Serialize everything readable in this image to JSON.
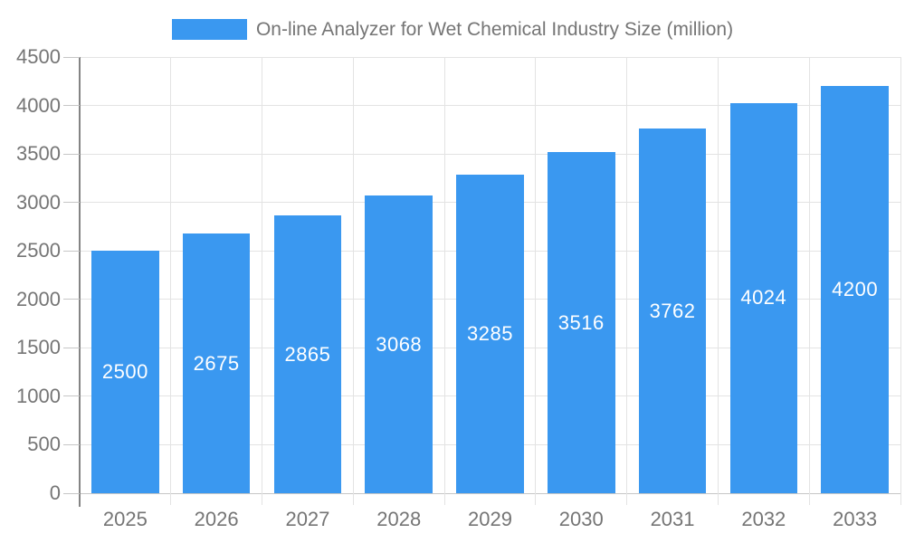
{
  "chart_data": {
    "type": "bar",
    "title": "On-line Analyzer for Wet Chemical Industry Size (million)",
    "legend_position": "top",
    "categories": [
      "2025",
      "2026",
      "2027",
      "2028",
      "2029",
      "2030",
      "2031",
      "2032",
      "2033"
    ],
    "series": [
      {
        "name": "On-line Analyzer for Wet Chemical Industry Size (million)",
        "values": [
          2500,
          2675,
          2865,
          3068,
          3285,
          3516,
          3762,
          4024,
          4200
        ]
      }
    ],
    "xlabel": "",
    "ylabel": "",
    "ylim": [
      0,
      4500
    ],
    "ytick_step": 500,
    "yticks": [
      0,
      500,
      1000,
      1500,
      2000,
      2500,
      3000,
      3500,
      4000,
      4500
    ],
    "grid": true,
    "bar_labels_inside": true,
    "colors": {
      "bar": "#3A98F0",
      "bar_label": "#ffffff",
      "axis_text": "#757575",
      "legend_text": "#757575",
      "gridline": "#e3e3e3",
      "baseline": "#c6c6c6",
      "tick": "#c6c6c6",
      "y_axis_line": "#848484",
      "background": "#ffffff"
    }
  }
}
